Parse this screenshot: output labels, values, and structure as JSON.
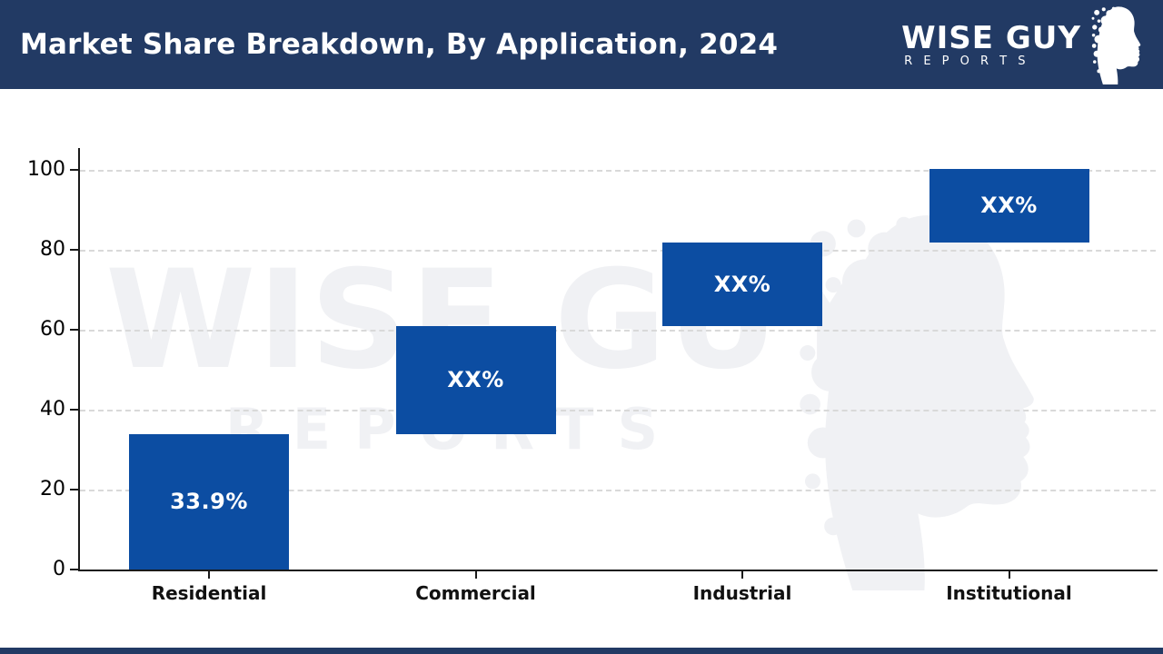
{
  "header": {
    "title": "Market Share Breakdown, By Application, 2024",
    "logo": {
      "line1": "WISE GUY",
      "line2": "R E P O R T S"
    }
  },
  "watermark": {
    "line1": "WISE GUY",
    "line2": "REPORTS"
  },
  "colors": {
    "header_bg": "#223A64",
    "bar": "#0C4DA2",
    "watermark": "#F0F1F4",
    "gridline": "#D9D9D9",
    "axis": "#1A1A1A",
    "bar_label": "#FFFFFF"
  },
  "chart_data": {
    "type": "bar",
    "subtype": "waterfall",
    "title": "Market Share Breakdown, By Application, 2024",
    "xlabel": "",
    "ylabel": "",
    "categories": [
      "Residential",
      "Commercial",
      "Industrial",
      "Institutional"
    ],
    "segments": [
      {
        "category": "Residential",
        "start": 0,
        "end": 33.9,
        "label": "33.9%"
      },
      {
        "category": "Commercial",
        "start": 33.9,
        "end": 61.0,
        "label": "XX%"
      },
      {
        "category": "Industrial",
        "start": 61.0,
        "end": 81.8,
        "label": "XX%"
      },
      {
        "category": "Institutional",
        "start": 81.8,
        "end": 100.3,
        "label": "XX%"
      }
    ],
    "yticks": [
      0,
      20,
      40,
      60,
      80,
      100
    ],
    "ylim": [
      0,
      105.5
    ],
    "grid": true,
    "legend": false
  }
}
